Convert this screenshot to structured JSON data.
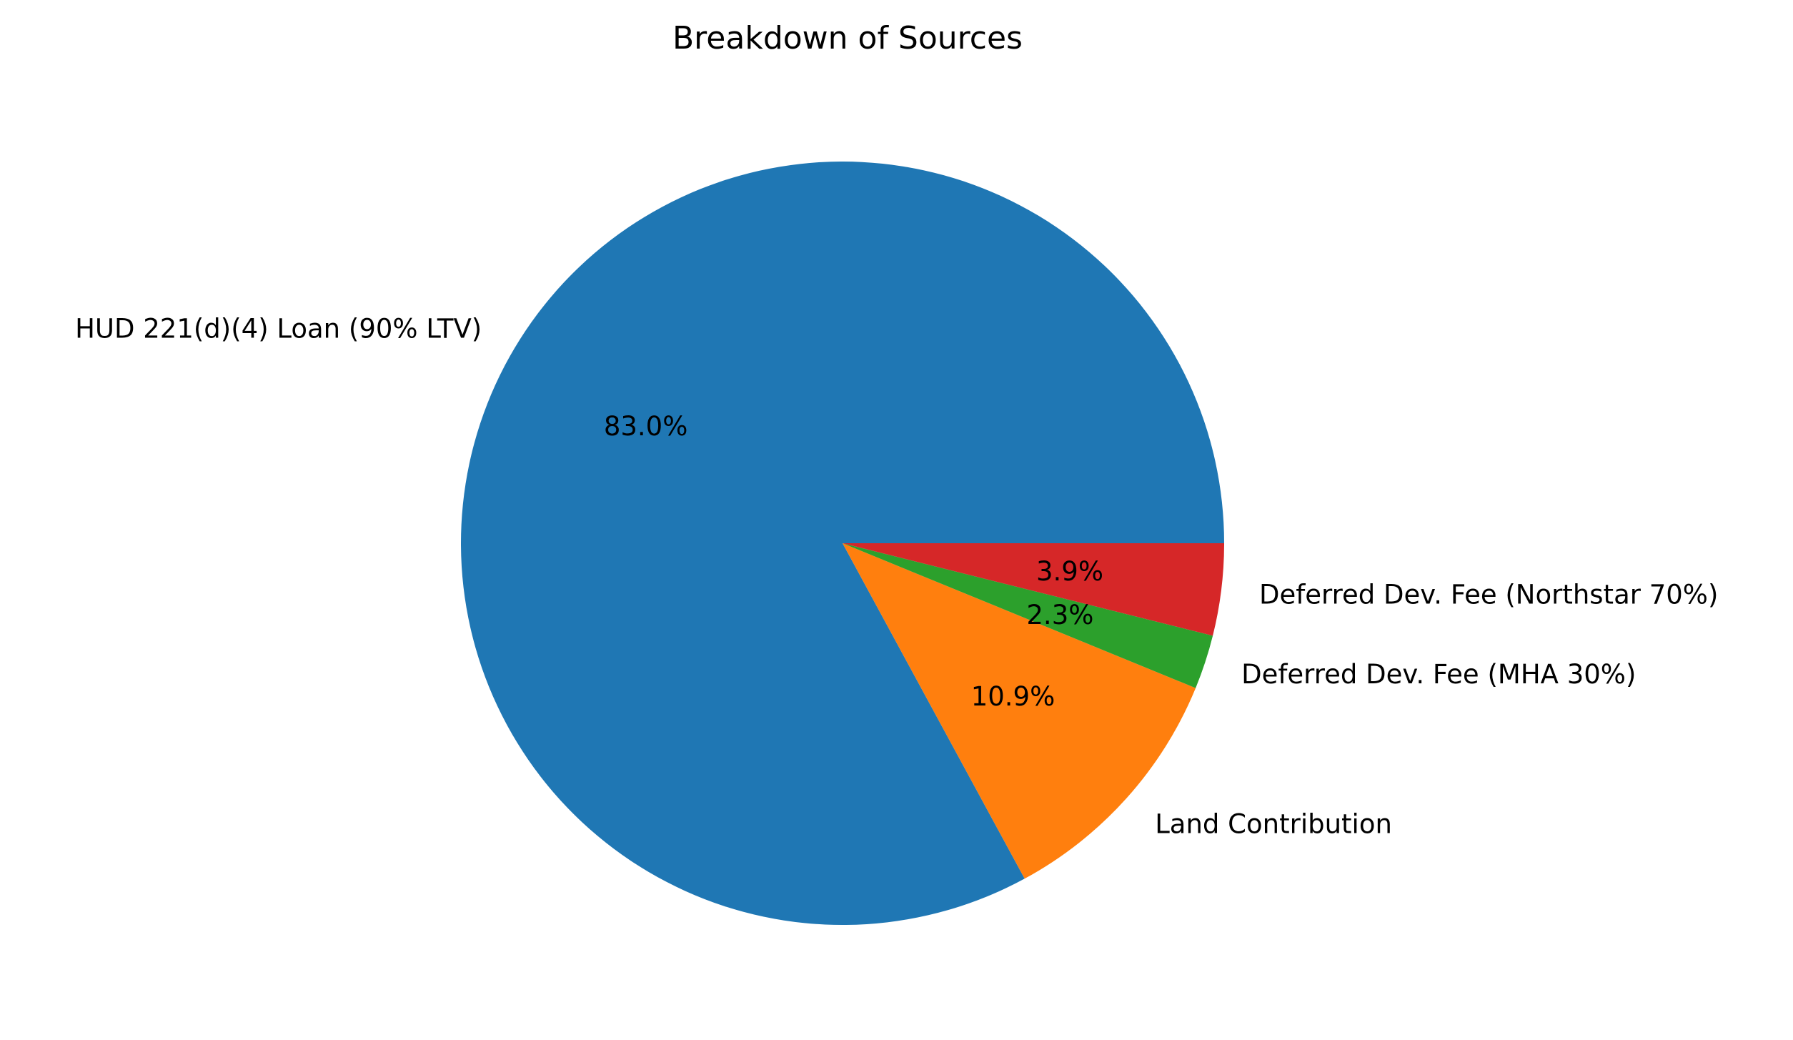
{
  "title": "Breakdown of Sources",
  "chart_data": {
    "type": "pie",
    "title": "Breakdown of Sources",
    "legend": "none",
    "background": "#ffffff",
    "text_color": "#000000",
    "start_angle_deg": 0,
    "direction": "counterclockwise",
    "label_radius_ratio": 1.1,
    "percent_radius_ratio": 0.6,
    "slices": [
      {
        "label": "HUD 221(d)(4) Loan (90% LTV)",
        "value": 83.0,
        "pct_label": "83.0%",
        "color": "#1f77b4"
      },
      {
        "label": "Land Contribution",
        "value": 10.9,
        "pct_label": "10.9%",
        "color": "#ff7f0e"
      },
      {
        "label": "Deferred Dev. Fee (MHA 30%)",
        "value": 2.3,
        "pct_label": "2.3%",
        "color": "#2ca02c"
      },
      {
        "label": "Deferred Dev. Fee (Northstar 70%)",
        "value": 3.9,
        "pct_label": "3.9%",
        "color": "#d62728"
      }
    ]
  }
}
